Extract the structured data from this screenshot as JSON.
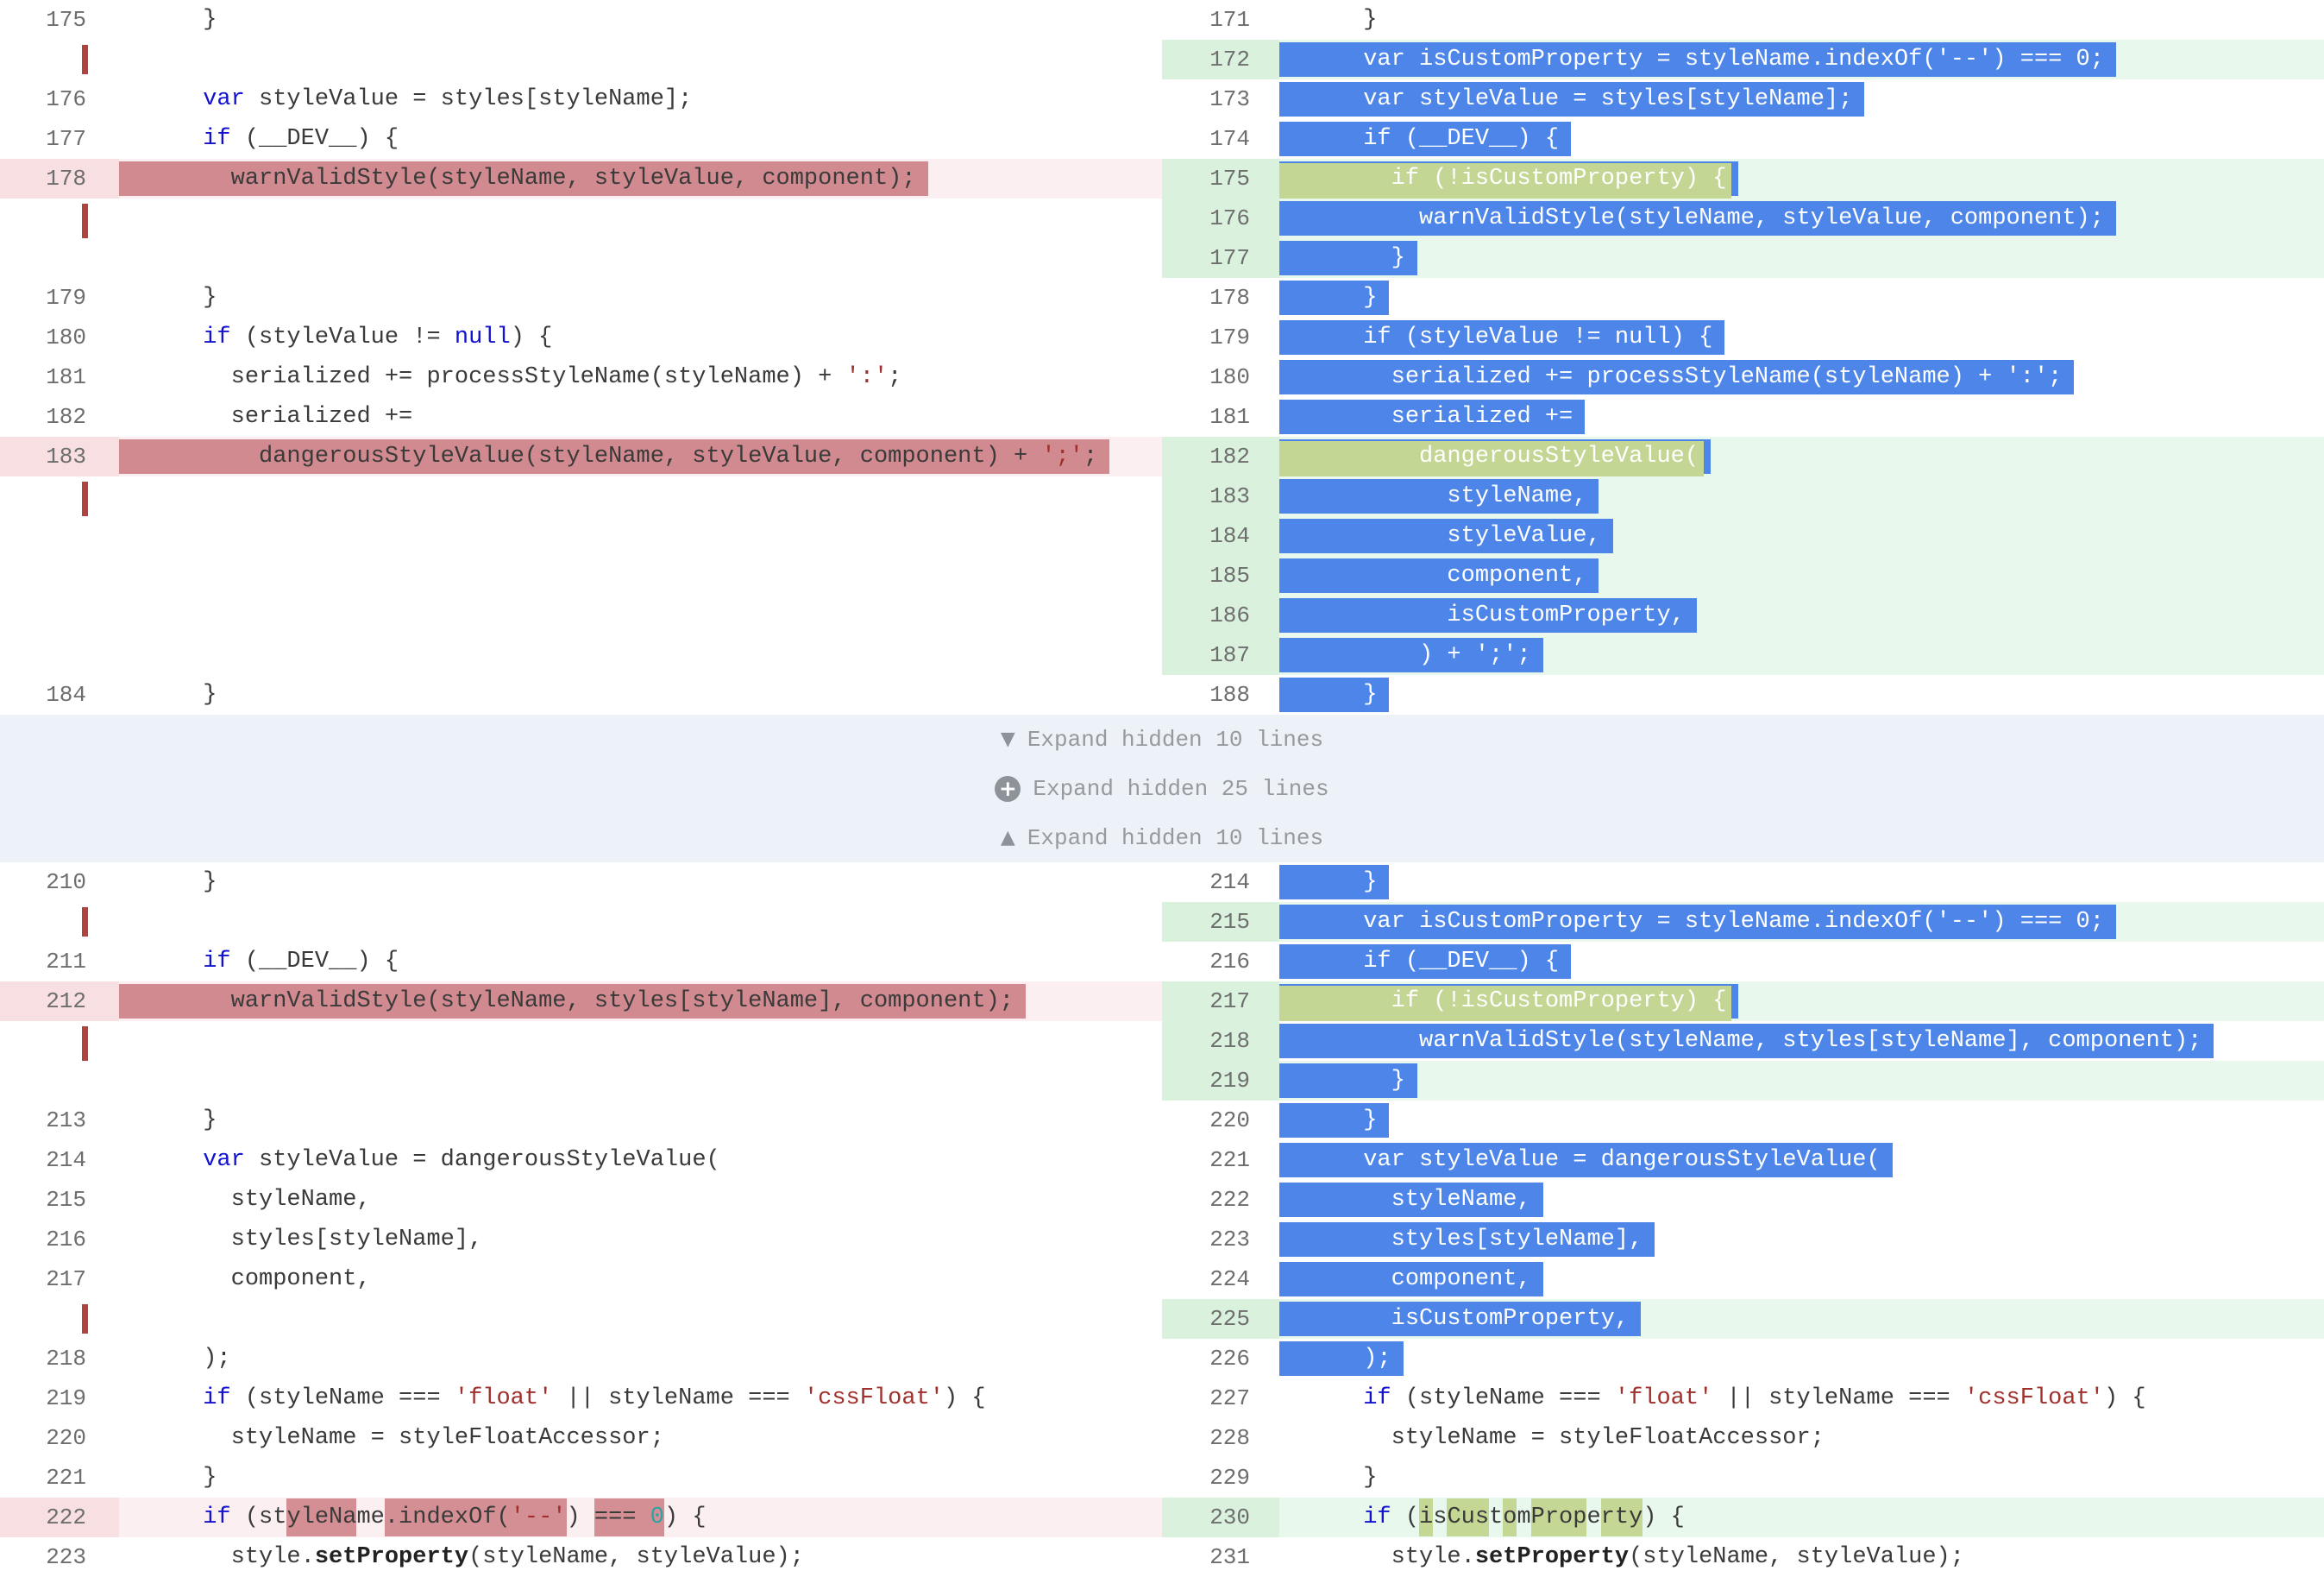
{
  "colors": {
    "selection_blue": "#4d86e8",
    "added_row_bg": "#e9f8ec",
    "added_gutter_bg": "#daf2dd",
    "removed_row_bg": "#fceff1",
    "removed_gutter_bg": "#f7dfe2",
    "removed_line_band": "#d18a8f",
    "removed_word_bg": "#d48f94",
    "added_word_bg": "#c4d794",
    "word_highlight_olive": "#c3d693",
    "change_marker_red": "#b1433f",
    "expand_section_bg": "#edf2f9",
    "keyword_blue": "#1212d0",
    "string_red": "#a0302c",
    "number_teal": "#2ba3a3",
    "code_text": "#3a3a3a",
    "line_number_gray": "#6e6e6e"
  },
  "expand": {
    "rows": [
      {
        "icon": "triangle-down-icon",
        "glyph": "▼",
        "label": "Expand hidden 10 lines"
      },
      {
        "icon": "plus-circle-icon",
        "glyph": "+",
        "label": "Expand hidden 25 lines"
      },
      {
        "icon": "triangle-up-icon",
        "glyph": "▲",
        "label": "Expand hidden 10 lines"
      }
    ]
  },
  "diff": {
    "top_left": [
      {
        "n": "175",
        "s": [
          {
            "t": "      }"
          }
        ]
      },
      {
        "sp": true,
        "m": true
      },
      {
        "n": "176",
        "s": [
          {
            "t": "      "
          },
          {
            "t": "var",
            "c": "kw"
          },
          {
            "t": " styleValue = styles[styleName];"
          }
        ]
      },
      {
        "n": "177",
        "s": [
          {
            "t": "      "
          },
          {
            "t": "if",
            "c": "kw"
          },
          {
            "t": " (__DEV__) {"
          }
        ]
      },
      {
        "n": "178",
        "g": "r",
        "bg": "r",
        "band": "del",
        "s": [
          {
            "t": "        warnValidStyle(styleName, styleValue, component);"
          }
        ]
      },
      {
        "sp": true,
        "m": true
      },
      {
        "sp": true,
        "m": true
      },
      {
        "n": "179",
        "s": [
          {
            "t": "      }"
          }
        ]
      },
      {
        "n": "180",
        "s": [
          {
            "t": "      "
          },
          {
            "t": "if",
            "c": "kw"
          },
          {
            "t": " (styleValue != "
          },
          {
            "t": "null",
            "c": "kw"
          },
          {
            "t": ") {"
          }
        ]
      },
      {
        "n": "181",
        "s": [
          {
            "t": "        serialized += processStyleName(styleName) + "
          },
          {
            "t": "':'",
            "c": "str"
          },
          {
            "t": ";"
          }
        ]
      },
      {
        "n": "182",
        "s": [
          {
            "t": "        serialized +="
          }
        ]
      },
      {
        "n": "183",
        "g": "r",
        "bg": "r",
        "band": "del",
        "s": [
          {
            "t": "          dangerousStyleValue(styleName, styleValue, component) + "
          },
          {
            "t": "';'",
            "c": "str"
          },
          {
            "t": ";"
          }
        ]
      },
      {
        "sp": true,
        "m": true
      },
      {
        "sp": true,
        "m": true
      },
      {
        "sp": true,
        "m": true
      },
      {
        "sp": true,
        "m": true
      },
      {
        "sp": true,
        "m": true
      },
      {
        "n": "184",
        "s": [
          {
            "t": "      }"
          }
        ]
      }
    ],
    "top_right": [
      {
        "n": "171",
        "s": [
          {
            "t": "      }"
          }
        ]
      },
      {
        "n": "172",
        "g": "g",
        "bg": "g",
        "band": "sel",
        "s": [
          {
            "t": "      var isCustomProperty = styleName.indexOf('--') === 0;"
          }
        ]
      },
      {
        "n": "173",
        "band": "sel",
        "s": [
          {
            "t": "      var styleValue = styles[styleName];"
          }
        ]
      },
      {
        "n": "174",
        "band": "sel",
        "s": [
          {
            "t": "      if (__DEV__) {"
          }
        ]
      },
      {
        "n": "175",
        "g": "g",
        "bg": "g",
        "band": "sel",
        "olive": true,
        "s": [
          {
            "t": "        if (!isCustomProperty) {"
          }
        ]
      },
      {
        "n": "176",
        "g": "g",
        "bg": "g",
        "band": "sel",
        "s": [
          {
            "t": "          warnValidStyle(styleName, styleValue, component);"
          }
        ]
      },
      {
        "n": "177",
        "g": "g",
        "bg": "g",
        "band": "sel",
        "s": [
          {
            "t": "        }"
          }
        ]
      },
      {
        "n": "178",
        "band": "sel",
        "s": [
          {
            "t": "      }"
          }
        ]
      },
      {
        "n": "179",
        "band": "sel",
        "s": [
          {
            "t": "      if (styleValue != null) {"
          }
        ]
      },
      {
        "n": "180",
        "band": "sel",
        "s": [
          {
            "t": "        serialized += processStyleName(styleName) + ':';"
          }
        ]
      },
      {
        "n": "181",
        "band": "sel",
        "s": [
          {
            "t": "        serialized +="
          }
        ]
      },
      {
        "n": "182",
        "g": "g",
        "bg": "g",
        "band": "sel",
        "olive": true,
        "s": [
          {
            "t": "          dangerousStyleValue("
          }
        ]
      },
      {
        "n": "183",
        "g": "g",
        "bg": "g",
        "band": "sel",
        "s": [
          {
            "t": "            styleName,"
          }
        ]
      },
      {
        "n": "184",
        "g": "g",
        "bg": "g",
        "band": "sel",
        "s": [
          {
            "t": "            styleValue,"
          }
        ]
      },
      {
        "n": "185",
        "g": "g",
        "bg": "g",
        "band": "sel",
        "s": [
          {
            "t": "            component,"
          }
        ]
      },
      {
        "n": "186",
        "g": "g",
        "bg": "g",
        "band": "sel",
        "s": [
          {
            "t": "            isCustomProperty,"
          }
        ]
      },
      {
        "n": "187",
        "g": "g",
        "bg": "g",
        "band": "sel",
        "s": [
          {
            "t": "          ) + ';';"
          }
        ]
      },
      {
        "n": "188",
        "band": "sel",
        "s": [
          {
            "t": "      }"
          }
        ]
      }
    ],
    "bottom_left": [
      {
        "n": "210",
        "s": [
          {
            "t": "      }"
          }
        ]
      },
      {
        "sp": true,
        "m": true
      },
      {
        "n": "211",
        "s": [
          {
            "t": "      "
          },
          {
            "t": "if",
            "c": "kw"
          },
          {
            "t": " (__DEV__) {"
          }
        ]
      },
      {
        "n": "212",
        "g": "r",
        "bg": "r",
        "band": "del",
        "s": [
          {
            "t": "        warnValidStyle(styleName, styles[styleName], component);"
          }
        ]
      },
      {
        "sp": true,
        "m": true
      },
      {
        "sp": true,
        "m": true
      },
      {
        "n": "213",
        "s": [
          {
            "t": "      }"
          }
        ]
      },
      {
        "n": "214",
        "s": [
          {
            "t": "      "
          },
          {
            "t": "var",
            "c": "kw"
          },
          {
            "t": " styleValue = dangerousStyleValue("
          }
        ]
      },
      {
        "n": "215",
        "s": [
          {
            "t": "        styleName,"
          }
        ]
      },
      {
        "n": "216",
        "s": [
          {
            "t": "        styles[styleName],"
          }
        ]
      },
      {
        "n": "217",
        "s": [
          {
            "t": "        component,"
          }
        ]
      },
      {
        "sp": true,
        "m": true
      },
      {
        "n": "218",
        "s": [
          {
            "t": "      );"
          }
        ]
      },
      {
        "n": "219",
        "s": [
          {
            "t": "      "
          },
          {
            "t": "if",
            "c": "kw"
          },
          {
            "t": " (styleName === "
          },
          {
            "t": "'float'",
            "c": "str"
          },
          {
            "t": " || styleName === "
          },
          {
            "t": "'cssFloat'",
            "c": "str"
          },
          {
            "t": ") {"
          }
        ]
      },
      {
        "n": "220",
        "s": [
          {
            "t": "        styleName = styleFloatAccessor;"
          }
        ]
      },
      {
        "n": "221",
        "s": [
          {
            "t": "      }"
          }
        ]
      },
      {
        "n": "222",
        "g": "r",
        "bg": "r",
        "wc": "r",
        "s": [
          {
            "t": "      "
          },
          {
            "t": "if",
            "c": "kw"
          },
          {
            "t": " (st"
          },
          {
            "t": "yleNa",
            "w": true
          },
          {
            "t": "me"
          },
          {
            "t": ".indexOf(",
            "w": true
          },
          {
            "t": "'--'",
            "c": "str",
            "w": true
          },
          {
            "t": ") "
          },
          {
            "t": "=== ",
            "w": true
          },
          {
            "t": "0",
            "c": "num",
            "w": true
          },
          {
            "t": ") {"
          }
        ]
      },
      {
        "n": "223",
        "s": [
          {
            "t": "        style."
          },
          {
            "t": "setProperty",
            "c": "bold"
          },
          {
            "t": "(styleName, styleValue);"
          }
        ]
      }
    ],
    "bottom_right": [
      {
        "n": "214",
        "band": "sel",
        "s": [
          {
            "t": "      }"
          }
        ]
      },
      {
        "n": "215",
        "g": "g",
        "bg": "g",
        "band": "sel",
        "s": [
          {
            "t": "      var isCustomProperty = styleName.indexOf('--') === 0;"
          }
        ]
      },
      {
        "n": "216",
        "band": "sel",
        "s": [
          {
            "t": "      if (__DEV__) {"
          }
        ]
      },
      {
        "n": "217",
        "g": "g",
        "bg": "g",
        "band": "sel",
        "olive": true,
        "s": [
          {
            "t": "        if (!isCustomProperty) {"
          }
        ]
      },
      {
        "n": "218",
        "g": "g",
        "band": "sel",
        "s": [
          {
            "t": "          warnValidStyle(styleName, styles[styleName], component);"
          }
        ]
      },
      {
        "n": "219",
        "g": "g",
        "bg": "g",
        "band": "sel",
        "s": [
          {
            "t": "        }"
          }
        ]
      },
      {
        "n": "220",
        "band": "sel",
        "s": [
          {
            "t": "      }"
          }
        ]
      },
      {
        "n": "221",
        "band": "sel",
        "s": [
          {
            "t": "      var styleValue = dangerousStyleValue("
          }
        ]
      },
      {
        "n": "222",
        "band": "sel",
        "s": [
          {
            "t": "        styleName,"
          }
        ]
      },
      {
        "n": "223",
        "band": "sel",
        "s": [
          {
            "t": "        styles[styleName],"
          }
        ]
      },
      {
        "n": "224",
        "band": "sel",
        "s": [
          {
            "t": "        component,"
          }
        ]
      },
      {
        "n": "225",
        "g": "g",
        "bg": "g",
        "band": "sel",
        "s": [
          {
            "t": "        isCustomProperty,"
          }
        ]
      },
      {
        "n": "226",
        "band": "sel",
        "s": [
          {
            "t": "      );"
          }
        ]
      },
      {
        "n": "227",
        "s": [
          {
            "t": "      "
          },
          {
            "t": "if",
            "c": "kw"
          },
          {
            "t": " (styleName === "
          },
          {
            "t": "'float'",
            "c": "str"
          },
          {
            "t": " || styleName === "
          },
          {
            "t": "'cssFloat'",
            "c": "str"
          },
          {
            "t": ") {"
          }
        ]
      },
      {
        "n": "228",
        "s": [
          {
            "t": "        styleName = styleFloatAccessor;"
          }
        ]
      },
      {
        "n": "229",
        "s": [
          {
            "t": "      }"
          }
        ]
      },
      {
        "n": "230",
        "g": "g",
        "bg": "g",
        "wc": "g",
        "s": [
          {
            "t": "      "
          },
          {
            "t": "if",
            "c": "kw"
          },
          {
            "t": " ("
          },
          {
            "t": "i",
            "w": true
          },
          {
            "t": "s"
          },
          {
            "t": "Cus",
            "w": true
          },
          {
            "t": "t"
          },
          {
            "t": "o",
            "w": true
          },
          {
            "t": "m"
          },
          {
            "t": "Prop",
            "w": true
          },
          {
            "t": "e"
          },
          {
            "t": "rty",
            "w": true
          },
          {
            "t": ") {"
          }
        ]
      },
      {
        "n": "231",
        "s": [
          {
            "t": "        style."
          },
          {
            "t": "setProperty",
            "c": "bold"
          },
          {
            "t": "(styleName, styleValue);"
          }
        ]
      }
    ]
  }
}
